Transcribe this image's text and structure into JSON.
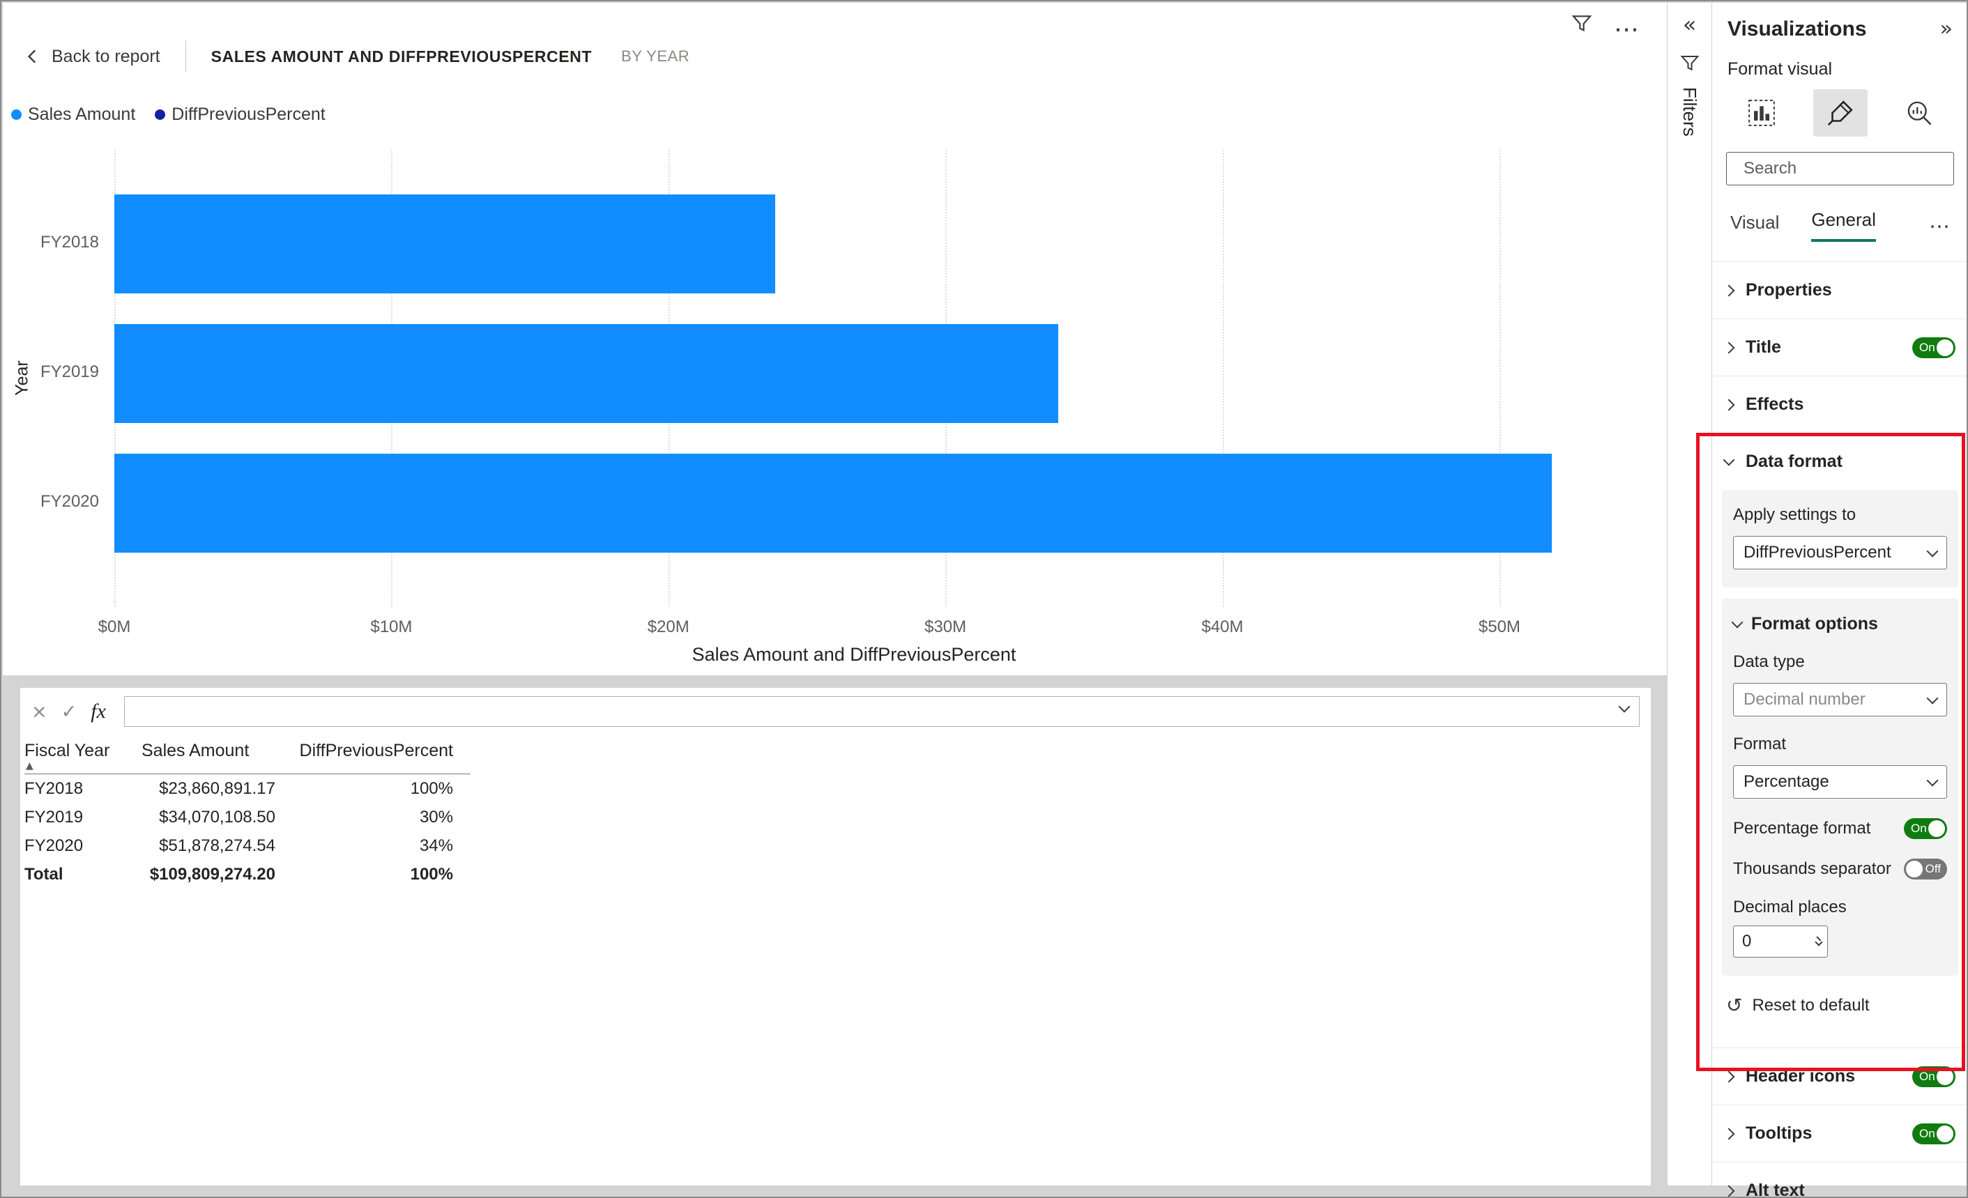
{
  "colors": {
    "bar_blue": "#118DFF",
    "legend_secondary": "#12239E",
    "selected_tab_underline": "#117865",
    "toggle_on_green": "#107C10",
    "toggle_off_grey": "#767676",
    "annotation_red": "#E81123"
  },
  "icons": {
    "back": "back-chevron",
    "collapse_left": "«",
    "collapse_right": "»",
    "more": "…",
    "tabs_more": "…",
    "reset": "↺",
    "sort_asc": "▲",
    "formula_cancel": "×",
    "formula_accept": "✓",
    "fx": "fx"
  },
  "report_header": {
    "back_label": "Back to report",
    "title": "SALES AMOUNT AND DIFFPREVIOUSPERCENT",
    "subtitle": "BY YEAR"
  },
  "legend": [
    {
      "label": "Sales Amount",
      "color": "#118DFF"
    },
    {
      "label": "DiffPreviousPercent",
      "color": "#12239E"
    }
  ],
  "chart_data": {
    "type": "bar",
    "orientation": "horizontal",
    "title": "Sales Amount and DiffPreviousPercent by Year",
    "categories": [
      "FY2018",
      "FY2019",
      "FY2020"
    ],
    "series": [
      {
        "name": "Sales Amount",
        "color": "#118DFF",
        "unit": "USD",
        "values": [
          23860891.17,
          34070108.5,
          51878274.54
        ]
      },
      {
        "name": "DiffPreviousPercent",
        "color": "#12239E",
        "unit": "percent",
        "values": [
          100,
          30,
          34
        ]
      }
    ],
    "xlabel": "Sales Amount and DiffPreviousPercent",
    "ylabel": "Year",
    "x_tick_labels": [
      "$0M",
      "$10M",
      "$20M",
      "$30M",
      "$40M",
      "$50M"
    ],
    "x_tick_values_millions": [
      0,
      10,
      20,
      30,
      40,
      50
    ],
    "xlim_millions": [
      0,
      53.4
    ],
    "grid": true,
    "legend_position": "top-left"
  },
  "formula_bar": {
    "value": ""
  },
  "data_table": {
    "columns": [
      {
        "label": "Fiscal Year",
        "align": "left",
        "sorted": "asc"
      },
      {
        "label": "Sales Amount",
        "align": "right"
      },
      {
        "label": "DiffPreviousPercent",
        "align": "right"
      }
    ],
    "rows": [
      [
        "FY2018",
        "$23,860,891.17",
        "100%"
      ],
      [
        "FY2019",
        "$34,070,108.50",
        "30%"
      ],
      [
        "FY2020",
        "$51,878,274.54",
        "34%"
      ]
    ],
    "total": [
      "Total",
      "$109,809,274.20",
      "100%"
    ]
  },
  "filters_pane": {
    "label": "Filters"
  },
  "viz_pane": {
    "title": "Visualizations",
    "subtitle": "Format visual",
    "search_placeholder": "Search",
    "tabs": {
      "visual": "Visual",
      "general": "General",
      "selected": "General"
    },
    "sections": {
      "properties": "Properties",
      "title": "Title",
      "title_state": "On",
      "effects": "Effects",
      "data_format": "Data format",
      "header_icons": "Header icons",
      "header_icons_state": "On",
      "tooltips": "Tooltips",
      "tooltips_state": "On",
      "alt_text": "Alt text"
    },
    "data_format": {
      "apply_settings_label": "Apply settings to",
      "apply_settings_value": "DiffPreviousPercent",
      "format_options_label": "Format options",
      "data_type_label": "Data type",
      "data_type_value": "Decimal number",
      "format_label": "Format",
      "format_value": "Percentage",
      "percentage_format_label": "Percentage format",
      "percentage_format_state": "On",
      "thousands_label": "Thousands separator",
      "thousands_state": "Off",
      "decimal_places_label": "Decimal places",
      "decimal_places_value": "0",
      "reset_label": "Reset to default"
    }
  }
}
